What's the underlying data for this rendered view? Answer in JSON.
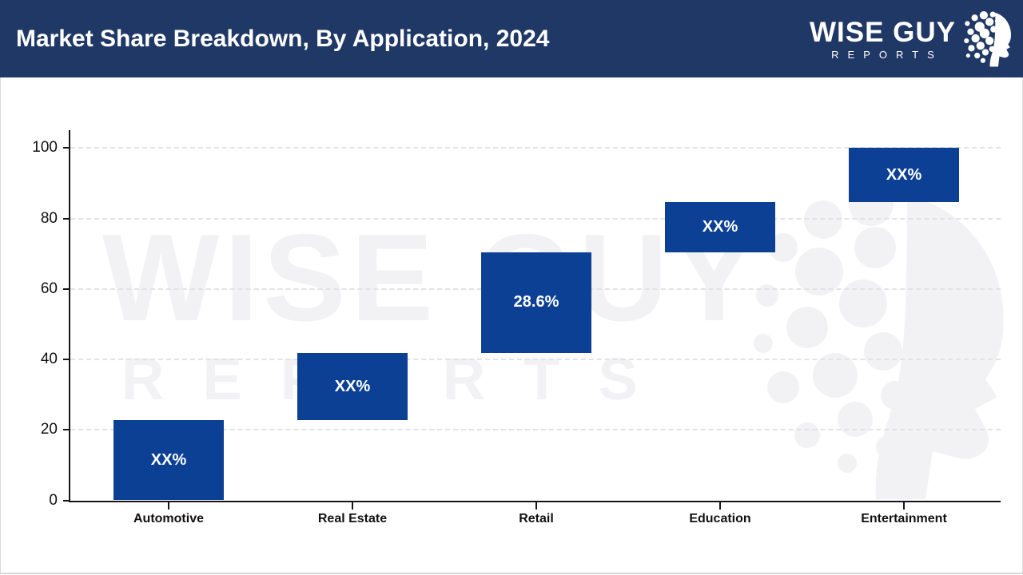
{
  "header": {
    "title": "Market Share Breakdown, By Application, 2024",
    "logo": {
      "name_top": "WISE GUY",
      "name_bottom": "REPORTS"
    }
  },
  "watermark": {
    "line1": "WISE GUY",
    "line2": "REPORTS"
  },
  "colors": {
    "header_bg": "#203866",
    "bar": "#0b4094",
    "grid": "#e3e3e3",
    "axis": "#161616",
    "title_text": "#ffffff",
    "watermark": "#f2f2f4"
  },
  "chart_data": {
    "type": "bar",
    "subtype": "waterfall-cumulative",
    "title": "Market Share Breakdown, By Application, 2024",
    "xlabel": "",
    "ylabel": "",
    "categories": [
      "Automotive",
      "Real Estate",
      "Retail",
      "Education",
      "Entertainment"
    ],
    "segments": [
      {
        "category": "Automotive",
        "start": 0,
        "end": 22.7,
        "value_label": "XX%"
      },
      {
        "category": "Real Estate",
        "start": 22.7,
        "end": 41.8,
        "value_label": "XX%"
      },
      {
        "category": "Retail",
        "start": 41.8,
        "end": 70.4,
        "value_label": "28.6%"
      },
      {
        "category": "Education",
        "start": 70.4,
        "end": 84.7,
        "value_label": "XX%"
      },
      {
        "category": "Entertainment",
        "start": 84.7,
        "end": 100,
        "value_label": "XX%"
      }
    ],
    "ylim": [
      0,
      100
    ],
    "yticks": [
      0,
      20,
      40,
      60,
      80,
      100
    ],
    "grid": "horizontal-dashed",
    "legend": "none"
  }
}
